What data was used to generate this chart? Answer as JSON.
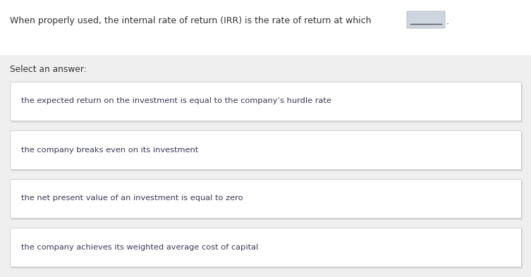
{
  "question": "When properly used, the internal rate of return (IRR) is the rate of return at which",
  "blank_box_color": "#cdd5de",
  "blank_underline_color": "#555555",
  "select_label": "Select an answer:",
  "choices": [
    "the expected return on the investment is equal to the company’s hurdle rate",
    "the company breaks even on its investment",
    "the net present value of an investment is equal to zero",
    "the company achieves its weighted average cost of capital"
  ],
  "bg_top": "#ffffff",
  "bg_bottom": "#efefef",
  "choice_bg": "#ffffff",
  "choice_border": "#d0d0d0",
  "choice_shadow": "#d8d8d8",
  "question_color": "#333333",
  "choice_text_color": "#3a3a5a",
  "select_label_color": "#333333",
  "question_fontsize": 9.0,
  "choice_fontsize": 8.2,
  "select_fontsize": 8.8,
  "fig_width": 7.53,
  "fig_height": 3.93,
  "dpi": 100
}
